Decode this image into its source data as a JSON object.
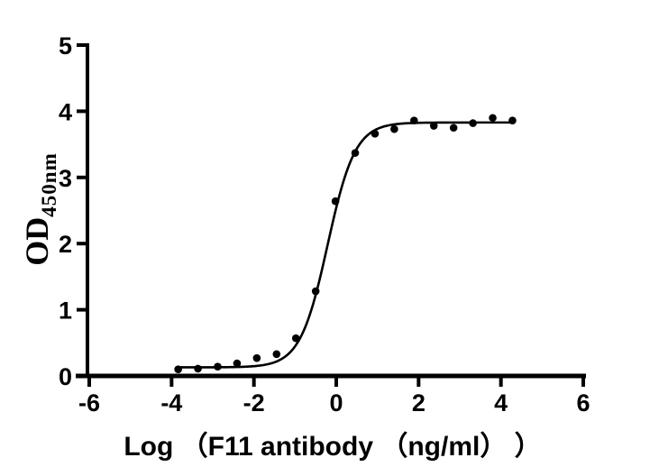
{
  "figure": {
    "background": "#ffffff",
    "ink_color": "#000000"
  },
  "chart_data": {
    "type": "scatter",
    "title": "",
    "xlabel": "Log （F11 antibody （ng/ml） ）",
    "ylabel_main": "OD",
    "ylabel_sub": "450nm",
    "xlim": [
      -6,
      6
    ],
    "ylim": [
      0,
      5
    ],
    "x_ticks": [
      -6,
      -4,
      -2,
      0,
      2,
      4,
      6
    ],
    "y_ticks": [
      0,
      1,
      2,
      3,
      4,
      5
    ],
    "grid": false,
    "legend": false,
    "points": [
      {
        "x": -3.84,
        "y": 0.1
      },
      {
        "x": -3.36,
        "y": 0.11
      },
      {
        "x": -2.88,
        "y": 0.14
      },
      {
        "x": -2.41,
        "y": 0.19
      },
      {
        "x": -1.93,
        "y": 0.27
      },
      {
        "x": -1.45,
        "y": 0.33
      },
      {
        "x": -0.98,
        "y": 0.57
      },
      {
        "x": -0.5,
        "y": 1.28
      },
      {
        "x": -0.02,
        "y": 2.64
      },
      {
        "x": 0.46,
        "y": 3.37
      },
      {
        "x": 0.94,
        "y": 3.66
      },
      {
        "x": 1.41,
        "y": 3.73
      },
      {
        "x": 1.89,
        "y": 3.86
      },
      {
        "x": 2.37,
        "y": 3.78
      },
      {
        "x": 2.85,
        "y": 3.75
      },
      {
        "x": 3.32,
        "y": 3.82
      },
      {
        "x": 3.8,
        "y": 3.9
      },
      {
        "x": 4.28,
        "y": 3.86
      }
    ],
    "curve_fit": {
      "model": "4PL",
      "bottom": 0.13,
      "top": 3.83,
      "log_ec50": -0.21,
      "hill_slope": 1.3,
      "x_start": -3.84,
      "x_end": 4.28
    }
  }
}
